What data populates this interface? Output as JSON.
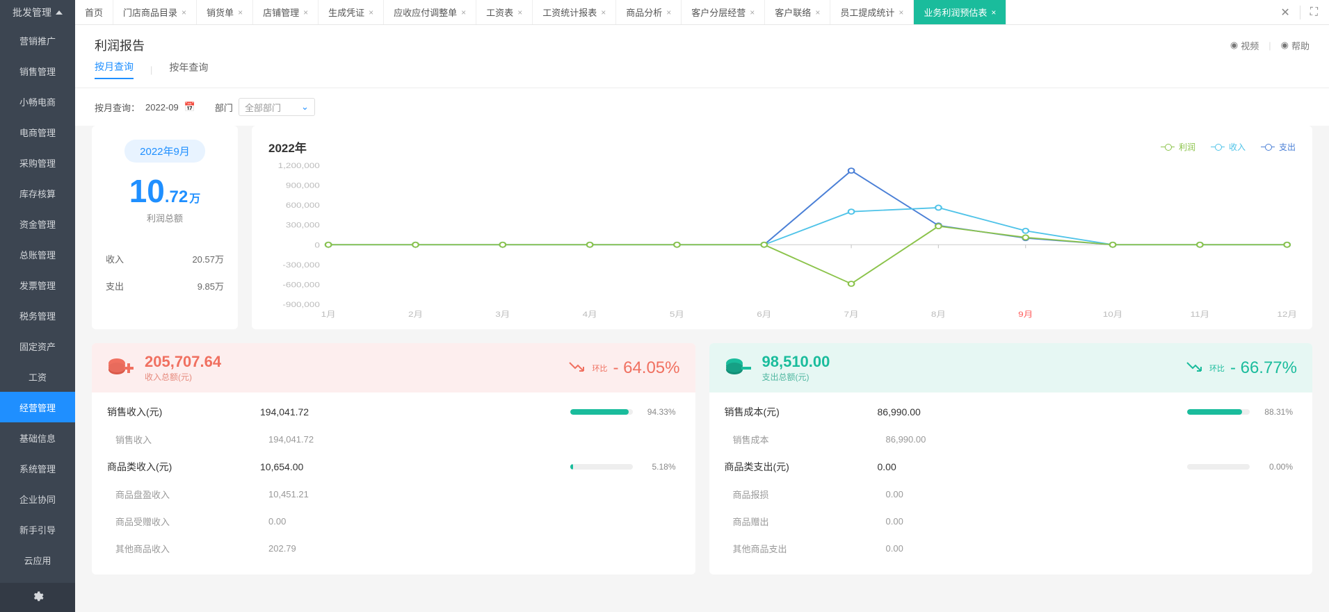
{
  "sidebar": {
    "header": "批发管理",
    "items": [
      {
        "label": "营销推广"
      },
      {
        "label": "销售管理"
      },
      {
        "label": "小畅电商"
      },
      {
        "label": "电商管理"
      },
      {
        "label": "采购管理"
      },
      {
        "label": "库存核算"
      },
      {
        "label": "资金管理"
      },
      {
        "label": "总账管理"
      },
      {
        "label": "发票管理"
      },
      {
        "label": "税务管理"
      },
      {
        "label": "固定资产"
      },
      {
        "label": "工资"
      },
      {
        "label": "经营管理",
        "active": true
      },
      {
        "label": "基础信息"
      },
      {
        "label": "系统管理"
      },
      {
        "label": "企业协同"
      },
      {
        "label": "新手引导"
      },
      {
        "label": "云应用"
      }
    ]
  },
  "tabs": [
    {
      "label": "首页",
      "closable": false
    },
    {
      "label": "门店商品目录",
      "closable": true
    },
    {
      "label": "销货单",
      "closable": true
    },
    {
      "label": "店铺管理",
      "closable": true
    },
    {
      "label": "生成凭证",
      "closable": true
    },
    {
      "label": "应收应付调整单",
      "closable": true
    },
    {
      "label": "工资表",
      "closable": true
    },
    {
      "label": "工资统计报表",
      "closable": true
    },
    {
      "label": "商品分析",
      "closable": true
    },
    {
      "label": "客户分层经营",
      "closable": true
    },
    {
      "label": "客户联络",
      "closable": true
    },
    {
      "label": "员工提成统计",
      "closable": true
    },
    {
      "label": "业务利润预估表",
      "closable": true,
      "active": true
    }
  ],
  "page": {
    "title": "利润报告",
    "video_label": "视频",
    "help_label": "帮助"
  },
  "sub_tabs": {
    "monthly": "按月查询",
    "yearly": "按年查询"
  },
  "filters": {
    "month_label": "按月查询：",
    "month_value": "2022-09",
    "dept_label": "部门",
    "dept_value": "全部部门"
  },
  "summary": {
    "period": "2022年9月",
    "profit_int": "10",
    "profit_dec": ".72",
    "profit_unit": "万",
    "profit_label": "利润总额",
    "income_label": "收入",
    "income_value": "20.57万",
    "expense_label": "支出",
    "expense_value": "9.85万"
  },
  "chart": {
    "type": "line",
    "year_label": "2022年",
    "legend": {
      "profit": "利润",
      "income": "收入",
      "expense": "支出"
    },
    "colors": {
      "profit": "#8bc34a",
      "income": "#4fc3e8",
      "expense": "#4a7fd6"
    },
    "x_labels": [
      "1月",
      "2月",
      "3月",
      "4月",
      "5月",
      "6月",
      "7月",
      "8月",
      "9月",
      "10月",
      "11月",
      "12月"
    ],
    "x_highlight_index": 8,
    "y_ticks": [
      1200000,
      900000,
      600000,
      300000,
      0,
      -300000,
      -600000,
      -900000
    ],
    "y_min": -900000,
    "y_max": 1200000,
    "series": {
      "profit": [
        0,
        0,
        0,
        0,
        0,
        0,
        -590000,
        280000,
        110000,
        0,
        0,
        0
      ],
      "income": [
        0,
        0,
        0,
        0,
        0,
        0,
        500000,
        560000,
        210000,
        0,
        0,
        0
      ],
      "expense": [
        0,
        0,
        0,
        0,
        0,
        0,
        1120000,
        290000,
        100000,
        0,
        0,
        0
      ]
    },
    "background_color": "#ffffff",
    "axis_color": "#cccccc",
    "tick_color": "#bbbbbb",
    "line_width": 1.8,
    "marker_radius": 3.5
  },
  "income_panel": {
    "header_bg": "#fdeeee",
    "accent": "#f07060",
    "amount": "205,707.64",
    "amount_label": "收入总额(元)",
    "hb_label": "环比",
    "hb_value": "- 64.05%",
    "rows": [
      {
        "label": "销售收入(元)",
        "value": "194,041.72",
        "pct": "94.33%",
        "pct_num": 94.33
      },
      {
        "label": "销售收入",
        "value": "194,041.72",
        "sub": true
      },
      {
        "label": "商品类收入(元)",
        "value": "10,654.00",
        "pct": "5.18%",
        "pct_num": 5.18
      },
      {
        "label": "商品盘盈收入",
        "value": "10,451.21",
        "sub": true
      },
      {
        "label": "商品受赠收入",
        "value": "0.00",
        "sub": true
      },
      {
        "label": "其他商品收入",
        "value": "202.79",
        "sub": true
      }
    ]
  },
  "expense_panel": {
    "header_bg": "#e6f7f3",
    "accent": "#1abc9c",
    "amount": "98,510.00",
    "amount_label": "支出总额(元)",
    "hb_label": "环比",
    "hb_value": "- 66.77%",
    "rows": [
      {
        "label": "销售成本(元)",
        "value": "86,990.00",
        "pct": "88.31%",
        "pct_num": 88.31
      },
      {
        "label": "销售成本",
        "value": "86,990.00",
        "sub": true
      },
      {
        "label": "商品类支出(元)",
        "value": "0.00",
        "pct": "0.00%",
        "pct_num": 0
      },
      {
        "label": "商品报损",
        "value": "0.00",
        "sub": true
      },
      {
        "label": "商品赠出",
        "value": "0.00",
        "sub": true
      },
      {
        "label": "其他商品支出",
        "value": "0.00",
        "sub": true
      }
    ]
  }
}
